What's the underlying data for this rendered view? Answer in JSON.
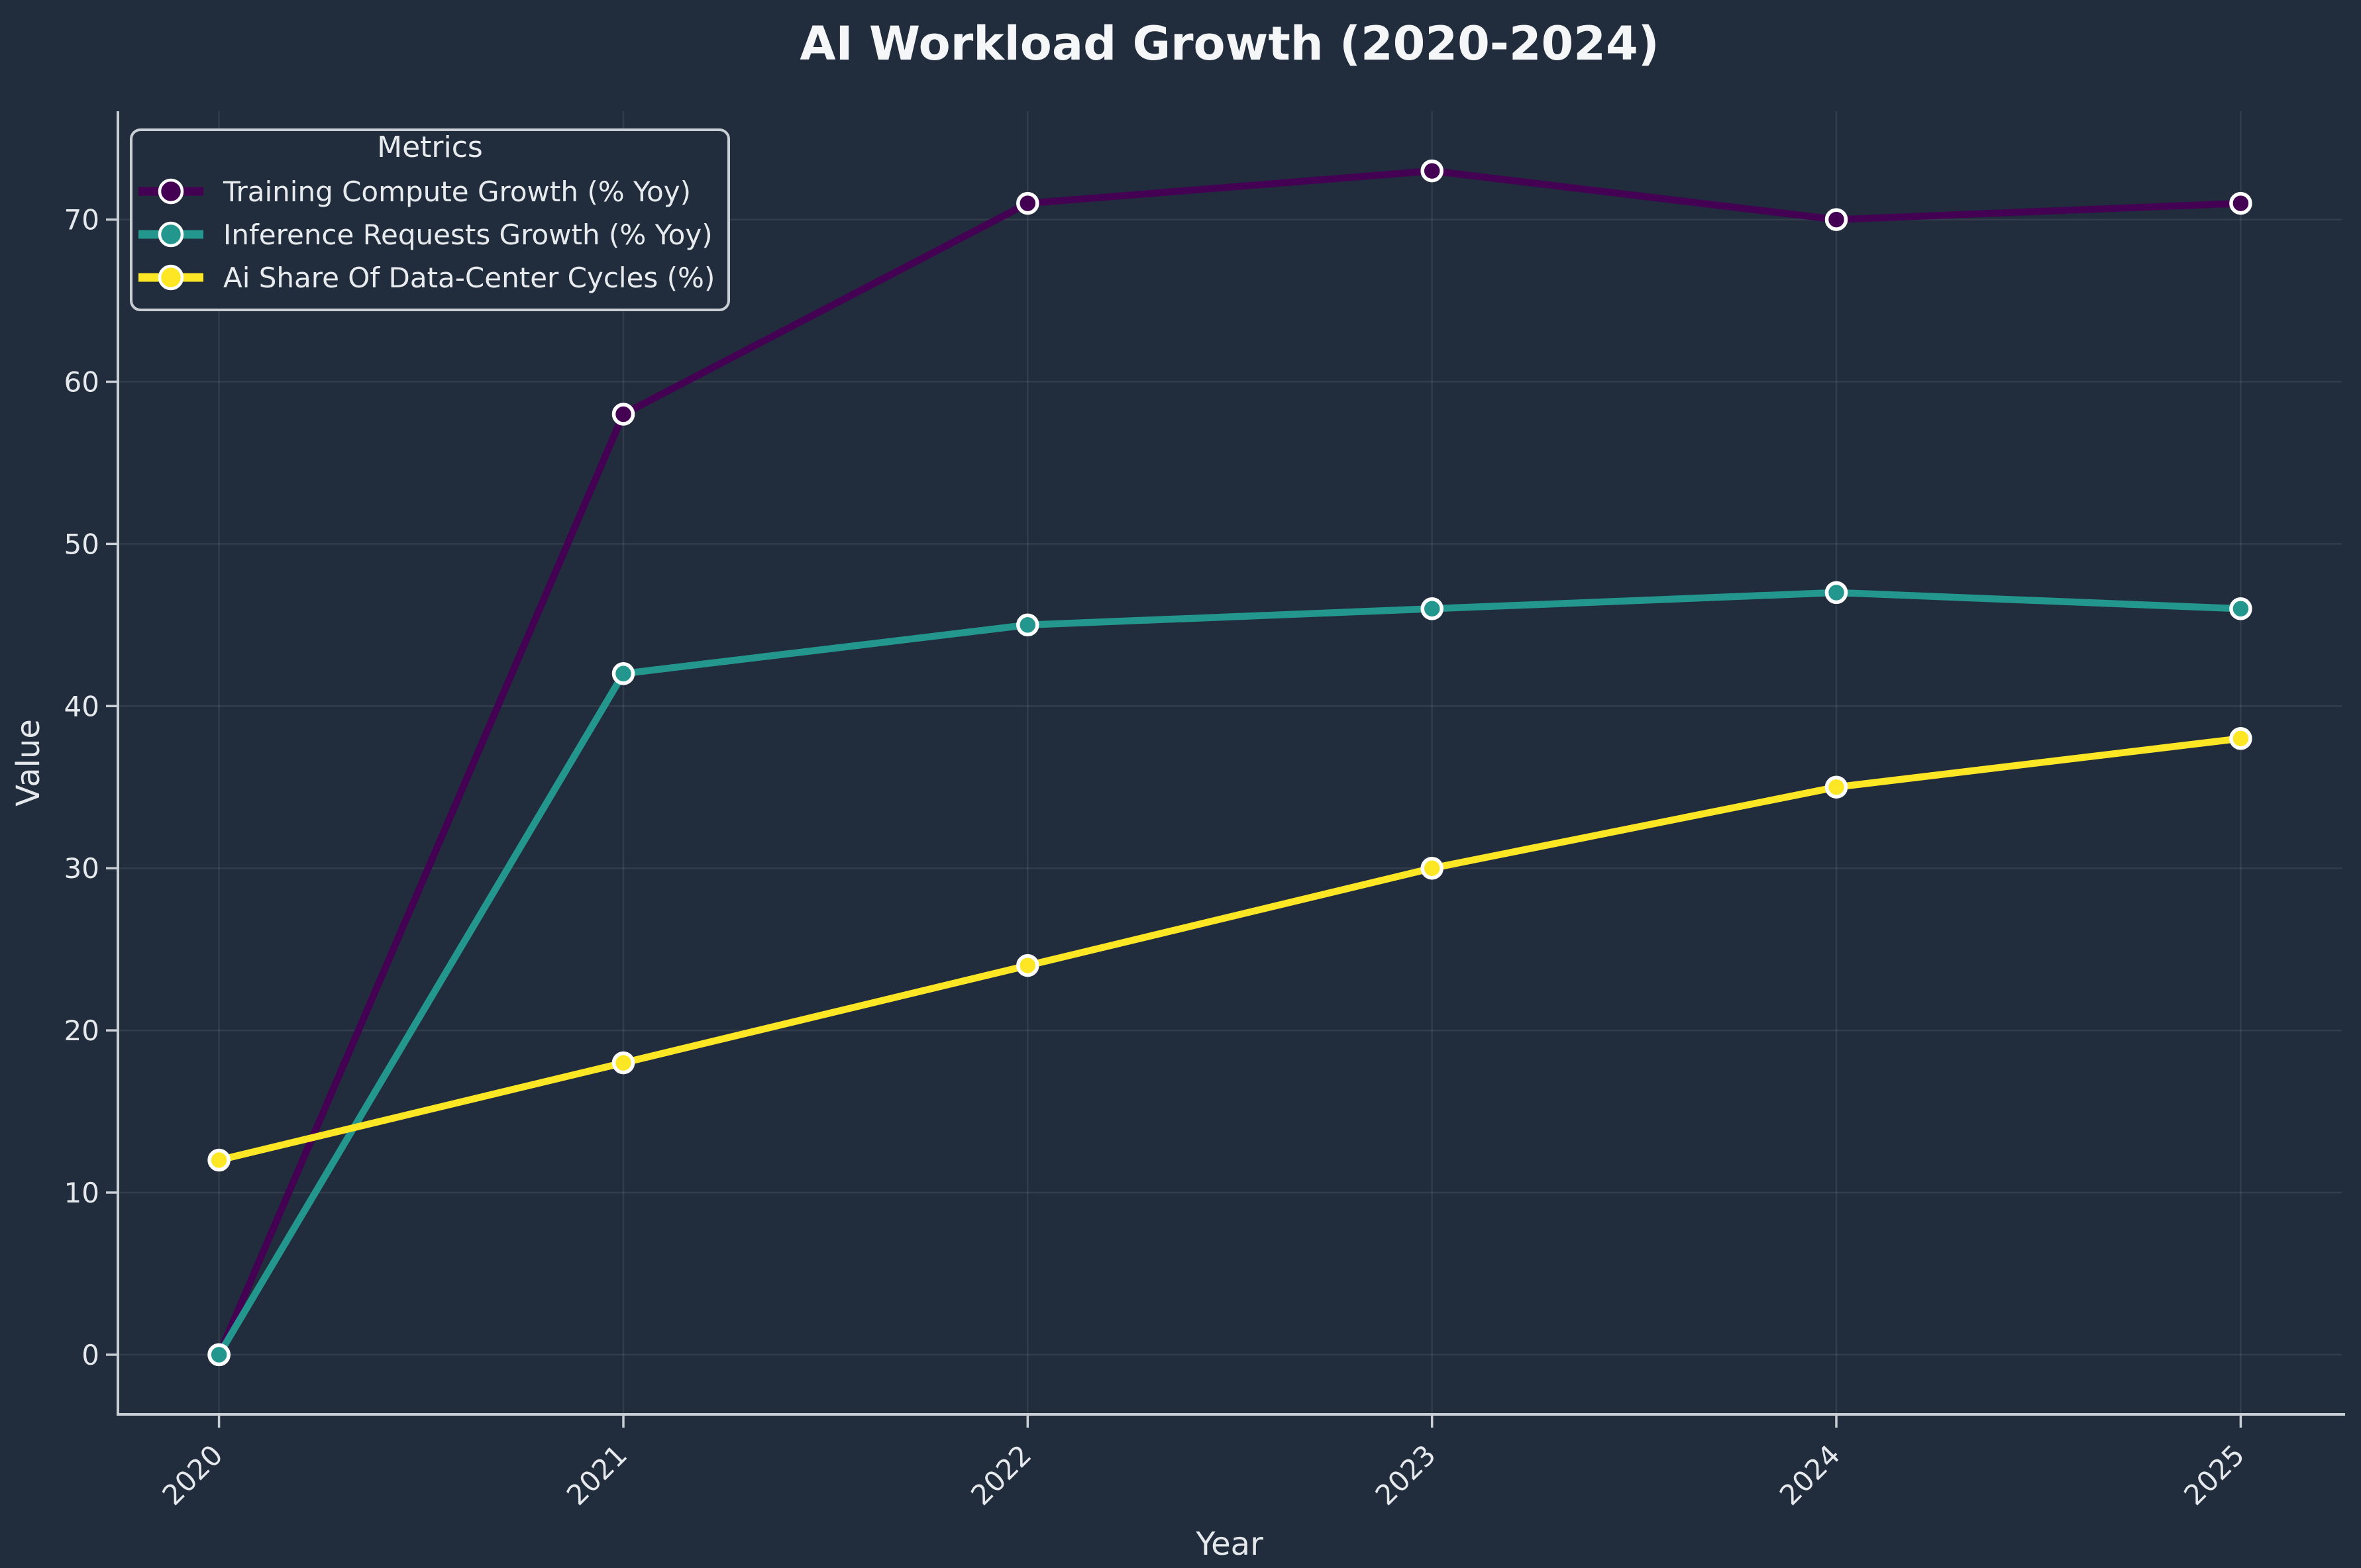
{
  "title": "AI Workload Growth (2020-2024)",
  "colors": {
    "background": "#212c3c",
    "grid": "rgba(255,255,255,0.08)",
    "spine": "#c9ced4",
    "tick": "#c9ced4",
    "tick_label": "#e6e9ec",
    "axis_label": "#e6e9ec",
    "title": "#f4f6f8",
    "legend_border": "#c9ced4",
    "legend_text": "#e8ebee",
    "marker_edge": "#ffffff"
  },
  "chart_data": {
    "type": "line",
    "x": [
      2020,
      2021,
      2022,
      2023,
      2024,
      2025
    ],
    "x_tick_labels": [
      "2020",
      "2021",
      "2022",
      "2023",
      "2024",
      "2025"
    ],
    "yticks": [
      0,
      10,
      20,
      30,
      40,
      50,
      60,
      70
    ],
    "xlim": [
      2019.75,
      2025.25
    ],
    "ylim": [
      -3.68,
      76.68
    ],
    "grid": true,
    "title": "AI Workload Growth (2020-2024)",
    "xlabel": "Year",
    "ylabel": "Value",
    "legend": {
      "title": "Metrics",
      "position": "upper-left"
    },
    "series": [
      {
        "name": "Training Compute Growth (% Yoy)",
        "color": "#440154",
        "values": [
          0,
          58,
          71,
          73,
          70,
          71
        ]
      },
      {
        "name": "Inference Requests Growth (% Yoy)",
        "color": "#23978e",
        "values": [
          0,
          42,
          45,
          46,
          47,
          46
        ]
      },
      {
        "name": "Ai Share Of Data-Center Cycles (%)",
        "color": "#fde725",
        "values": [
          12,
          18,
          24,
          30,
          35,
          38
        ]
      }
    ]
  }
}
